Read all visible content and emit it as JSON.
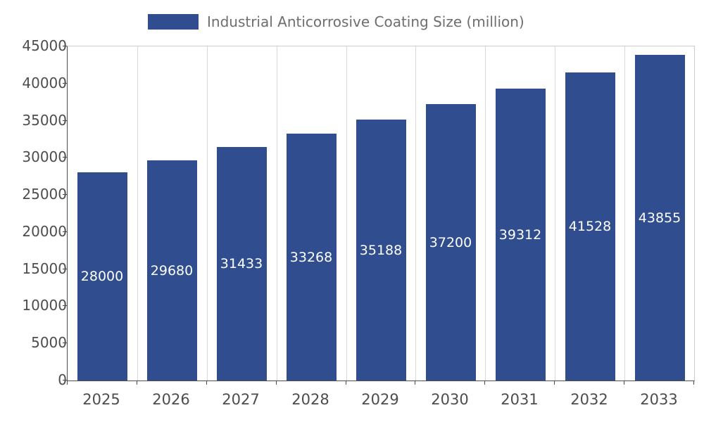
{
  "legend": {
    "label": "Industrial Anticorrosive Coating Size (million)"
  },
  "colors": {
    "bar": "#2f4d8f",
    "bar_label": "#ffffff",
    "axis_text": "#4d4d4d",
    "grid": "#d9d9d9"
  },
  "chart_data": {
    "type": "bar",
    "title": "Industrial Anticorrosive Coating Size (million)",
    "categories": [
      "2025",
      "2026",
      "2027",
      "2028",
      "2029",
      "2030",
      "2031",
      "2032",
      "2033"
    ],
    "values": [
      28000,
      29680,
      31433,
      33268,
      35188,
      37200,
      39312,
      41528,
      43855
    ],
    "xlabel": "",
    "ylabel": "",
    "ylim": [
      0,
      45000
    ],
    "ytick_step": 5000,
    "yticks": [
      0,
      5000,
      10000,
      15000,
      20000,
      25000,
      30000,
      35000,
      40000,
      45000
    ],
    "grid": "vertical-only",
    "legend_position": "top",
    "bar_value_labels": "inside-center"
  }
}
